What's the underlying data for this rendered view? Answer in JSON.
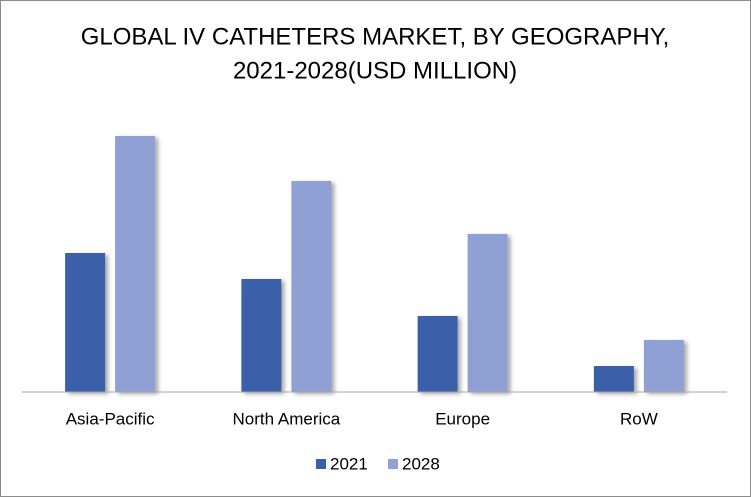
{
  "chart_data": {
    "type": "bar",
    "title": [
      "GLOBAL IV CATHETERS  MARKET, BY GEOGRAPHY,",
      "2021-2028(USD MILLION)"
    ],
    "categories": [
      "Asia-Pacific",
      "North America",
      "Europe",
      "RoW"
    ],
    "series": [
      {
        "name": "2021",
        "color": "#3a5ea8",
        "values": [
          139,
          113,
          76,
          26
        ]
      },
      {
        "name": "2028",
        "color": "#8fa0d4",
        "values": [
          256,
          211,
          158,
          52
        ]
      }
    ],
    "ylim": [
      0,
      280
    ],
    "legend": "bottom"
  }
}
